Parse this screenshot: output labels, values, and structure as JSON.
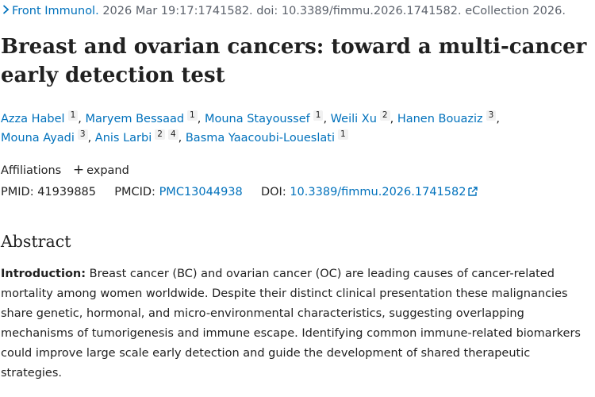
{
  "citation": {
    "journal": "Front Immunol.",
    "rest": "2026 Mar 19:17:1741582. doi: 10.3389/fimmu.2026.1741582. eCollection 2026."
  },
  "title": "Breast and ovarian cancers: toward a multi-cancer early detection test",
  "authors": [
    {
      "name": "Azza Habel",
      "aff": [
        "1"
      ]
    },
    {
      "name": "Maryem Bessaad",
      "aff": [
        "1"
      ]
    },
    {
      "name": "Mouna Stayoussef",
      "aff": [
        "1"
      ]
    },
    {
      "name": "Weili Xu",
      "aff": [
        "2"
      ]
    },
    {
      "name": "Hanen Bouaziz",
      "aff": [
        "3"
      ]
    },
    {
      "name": "Mouna Ayadi",
      "aff": [
        "3"
      ]
    },
    {
      "name": "Anis Larbi",
      "aff": [
        "2",
        "4"
      ]
    },
    {
      "name": "Basma Yaacoubi-Loueslati",
      "aff": [
        "1"
      ]
    }
  ],
  "affiliations": {
    "label": "Affiliations",
    "expand_label": "expand"
  },
  "identifiers": {
    "pmid_label": "PMID:",
    "pmid": "41939885",
    "pmcid_label": "PMCID:",
    "pmcid": "PMC13044938",
    "doi_label": "DOI:",
    "doi": "10.3389/fimmu.2026.1741582"
  },
  "abstract": {
    "heading": "Abstract",
    "intro_label": "Introduction:",
    "intro_text": "Breast cancer (BC) and ovarian cancer (OC) are leading causes of cancer-related mortality among women worldwide. Despite their distinct clinical presentation these malignancies share genetic, hormonal, and micro-environmental characteristics, suggesting overlapping mechanisms of tumorigenesis and immune escape. Identifying common immune-related biomarkers could improve large scale early detection and guide the development of shared therapeutic strategies."
  },
  "colors": {
    "link": "#0071bc",
    "text": "#212121",
    "muted": "#5b616b",
    "badge_bg": "#f1f1f1"
  }
}
